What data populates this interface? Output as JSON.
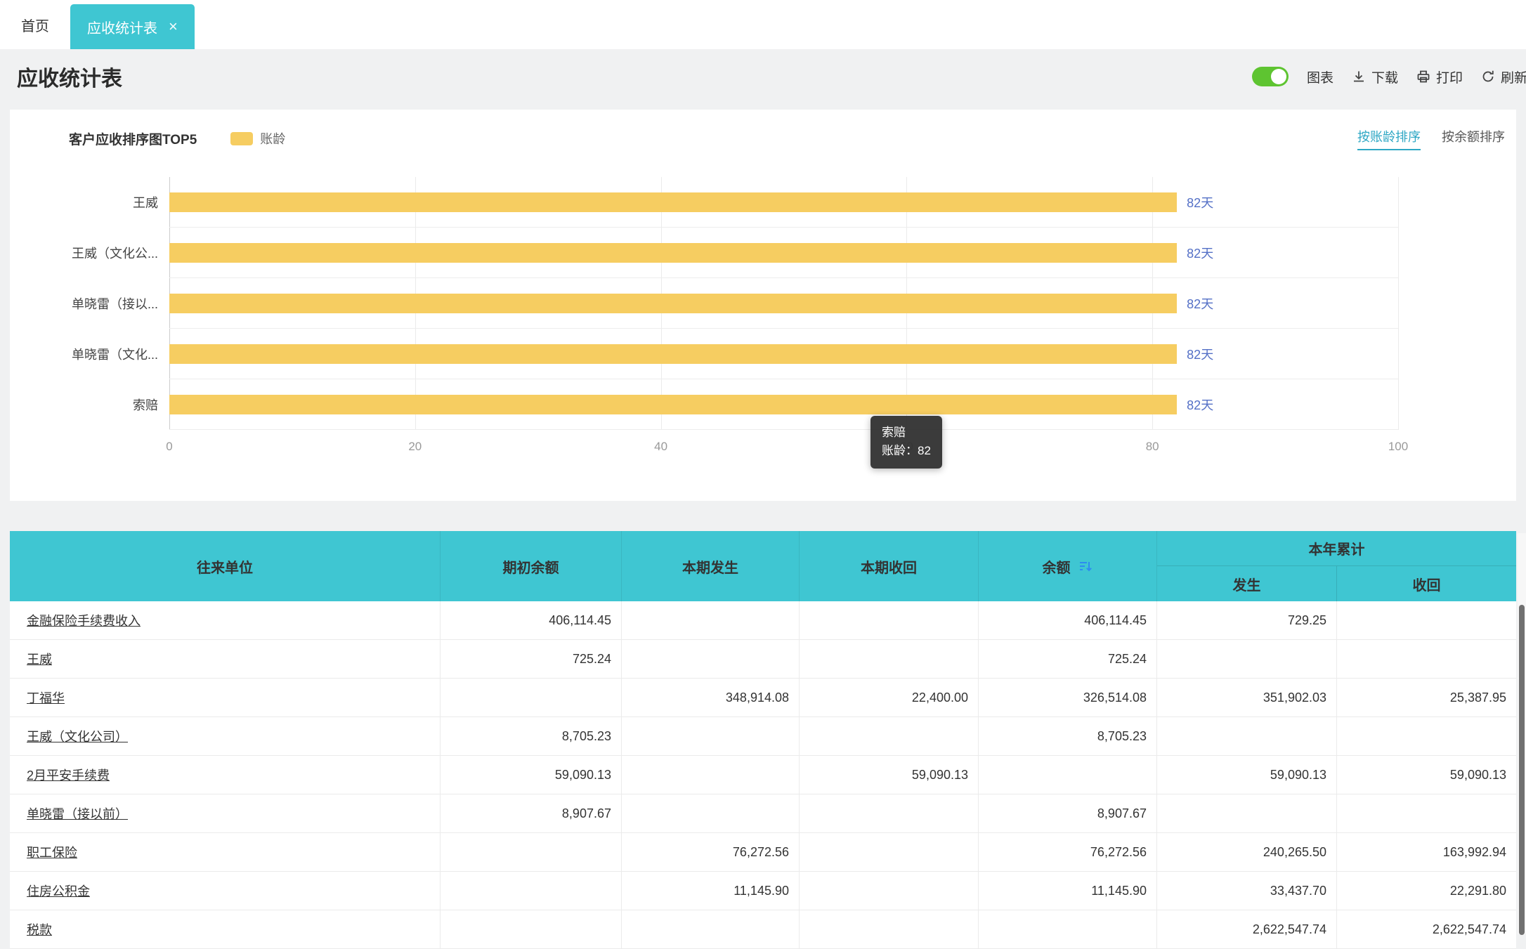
{
  "colors": {
    "teal": "#3fc6d2",
    "bar_yellow": "#f6cd61",
    "toggle_green": "#5ec431",
    "bar_label_blue": "#5470c6"
  },
  "tabs": {
    "home": "首页",
    "active": "应收统计表",
    "close": "×"
  },
  "toolbar": {
    "title": "应收统计表",
    "chart_toggle_label": "图表",
    "download_label": "下载",
    "print_label": "打印",
    "refresh_label": "刷新"
  },
  "chart": {
    "title": "客户应收排序图TOP5",
    "legend_label": "账龄",
    "sort_aging_label": "按账龄排序",
    "sort_balance_label": "按余额排序",
    "tooltip_title": "索赔",
    "tooltip_value": "账龄：82"
  },
  "chart_data": {
    "type": "bar",
    "orientation": "horizontal",
    "title": "客户应收排序图TOP5",
    "series_name": "账龄",
    "categories": [
      "王威",
      "王威（文化公...",
      "单晓雷（接以...",
      "单晓雷（文化...",
      "索赔"
    ],
    "values": [
      82,
      82,
      82,
      82,
      82
    ],
    "value_labels": [
      "82天",
      "82天",
      "82天",
      "82天",
      "82天"
    ],
    "xlim": [
      0,
      100
    ],
    "x_ticks": [
      "0",
      "20",
      "40",
      "60",
      "80",
      "100"
    ],
    "grid": true,
    "legend_position": "top-left",
    "bar_color": "#f6cd61"
  },
  "table": {
    "headers": {
      "company": "往来单位",
      "opening": "期初余额",
      "incurred": "本期发生",
      "recovered": "本期收回",
      "balance": "余额",
      "ytd_group": "本年累计",
      "ytd_incurred": "发生",
      "ytd_recovered": "收回"
    },
    "rows": [
      {
        "company": "金融保险手续费收入",
        "opening": "406,114.45",
        "incurred": "",
        "recovered": "",
        "balance": "406,114.45",
        "ytd_incurred": "729.25",
        "ytd_recovered": ""
      },
      {
        "company": "王威",
        "opening": "725.24",
        "incurred": "",
        "recovered": "",
        "balance": "725.24",
        "ytd_incurred": "",
        "ytd_recovered": ""
      },
      {
        "company": "丁福华",
        "opening": "",
        "incurred": "348,914.08",
        "recovered": "22,400.00",
        "balance": "326,514.08",
        "ytd_incurred": "351,902.03",
        "ytd_recovered": "25,387.95"
      },
      {
        "company": "王威（文化公司）",
        "opening": "8,705.23",
        "incurred": "",
        "recovered": "",
        "balance": "8,705.23",
        "ytd_incurred": "",
        "ytd_recovered": ""
      },
      {
        "company": "2月平安手续费",
        "opening": "59,090.13",
        "incurred": "",
        "recovered": "59,090.13",
        "balance": "",
        "ytd_incurred": "59,090.13",
        "ytd_recovered": "59,090.13"
      },
      {
        "company": "单晓雷（接以前）",
        "opening": "8,907.67",
        "incurred": "",
        "recovered": "",
        "balance": "8,907.67",
        "ytd_incurred": "",
        "ytd_recovered": ""
      },
      {
        "company": "职工保险",
        "opening": "",
        "incurred": "76,272.56",
        "recovered": "",
        "balance": "76,272.56",
        "ytd_incurred": "240,265.50",
        "ytd_recovered": "163,992.94"
      },
      {
        "company": "住房公积金",
        "opening": "",
        "incurred": "11,145.90",
        "recovered": "",
        "balance": "11,145.90",
        "ytd_incurred": "33,437.70",
        "ytd_recovered": "22,291.80"
      },
      {
        "company": "税款",
        "opening": "",
        "incurred": "",
        "recovered": "",
        "balance": "",
        "ytd_incurred": "2,622,547.74",
        "ytd_recovered": "2,622,547.74"
      }
    ]
  }
}
